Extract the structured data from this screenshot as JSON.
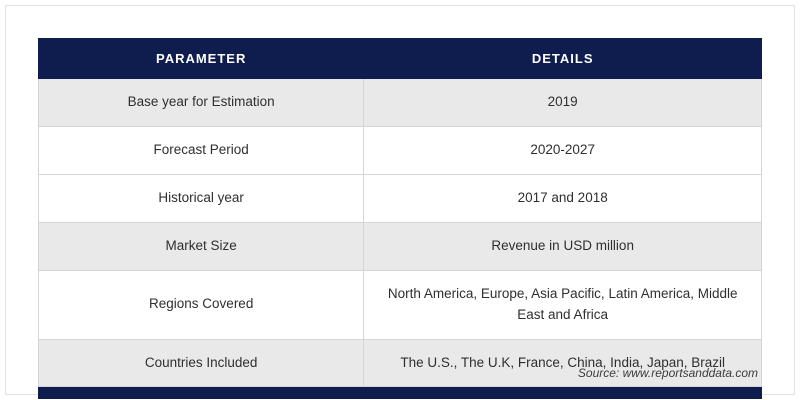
{
  "colors": {
    "header_bg": "#0e1c4e",
    "row_shaded_bg": "#e9e9e9",
    "row_plain_bg": "#ffffff",
    "border": "#d6d6d6"
  },
  "table": {
    "headers": [
      "PARAMETER",
      "DETAILS"
    ],
    "rows": [
      {
        "parameter": "Base year for Estimation",
        "details": "2019",
        "shaded": true
      },
      {
        "parameter": "Forecast Period",
        "details": "2020-2027",
        "shaded": false
      },
      {
        "parameter": "Historical year",
        "details": "2017 and 2018",
        "shaded": false
      },
      {
        "parameter": "Market Size",
        "details": "Revenue in USD million",
        "shaded": true
      },
      {
        "parameter": "Regions Covered",
        "details": "North America, Europe, Asia Pacific, Latin America, Middle East and Africa",
        "shaded": false
      },
      {
        "parameter": "Countries Included",
        "details": "The U.S., The U.K, France, China, India, Japan, Brazil",
        "shaded": true
      }
    ]
  },
  "source": {
    "label": "Source: www.reportsanddata.com"
  }
}
